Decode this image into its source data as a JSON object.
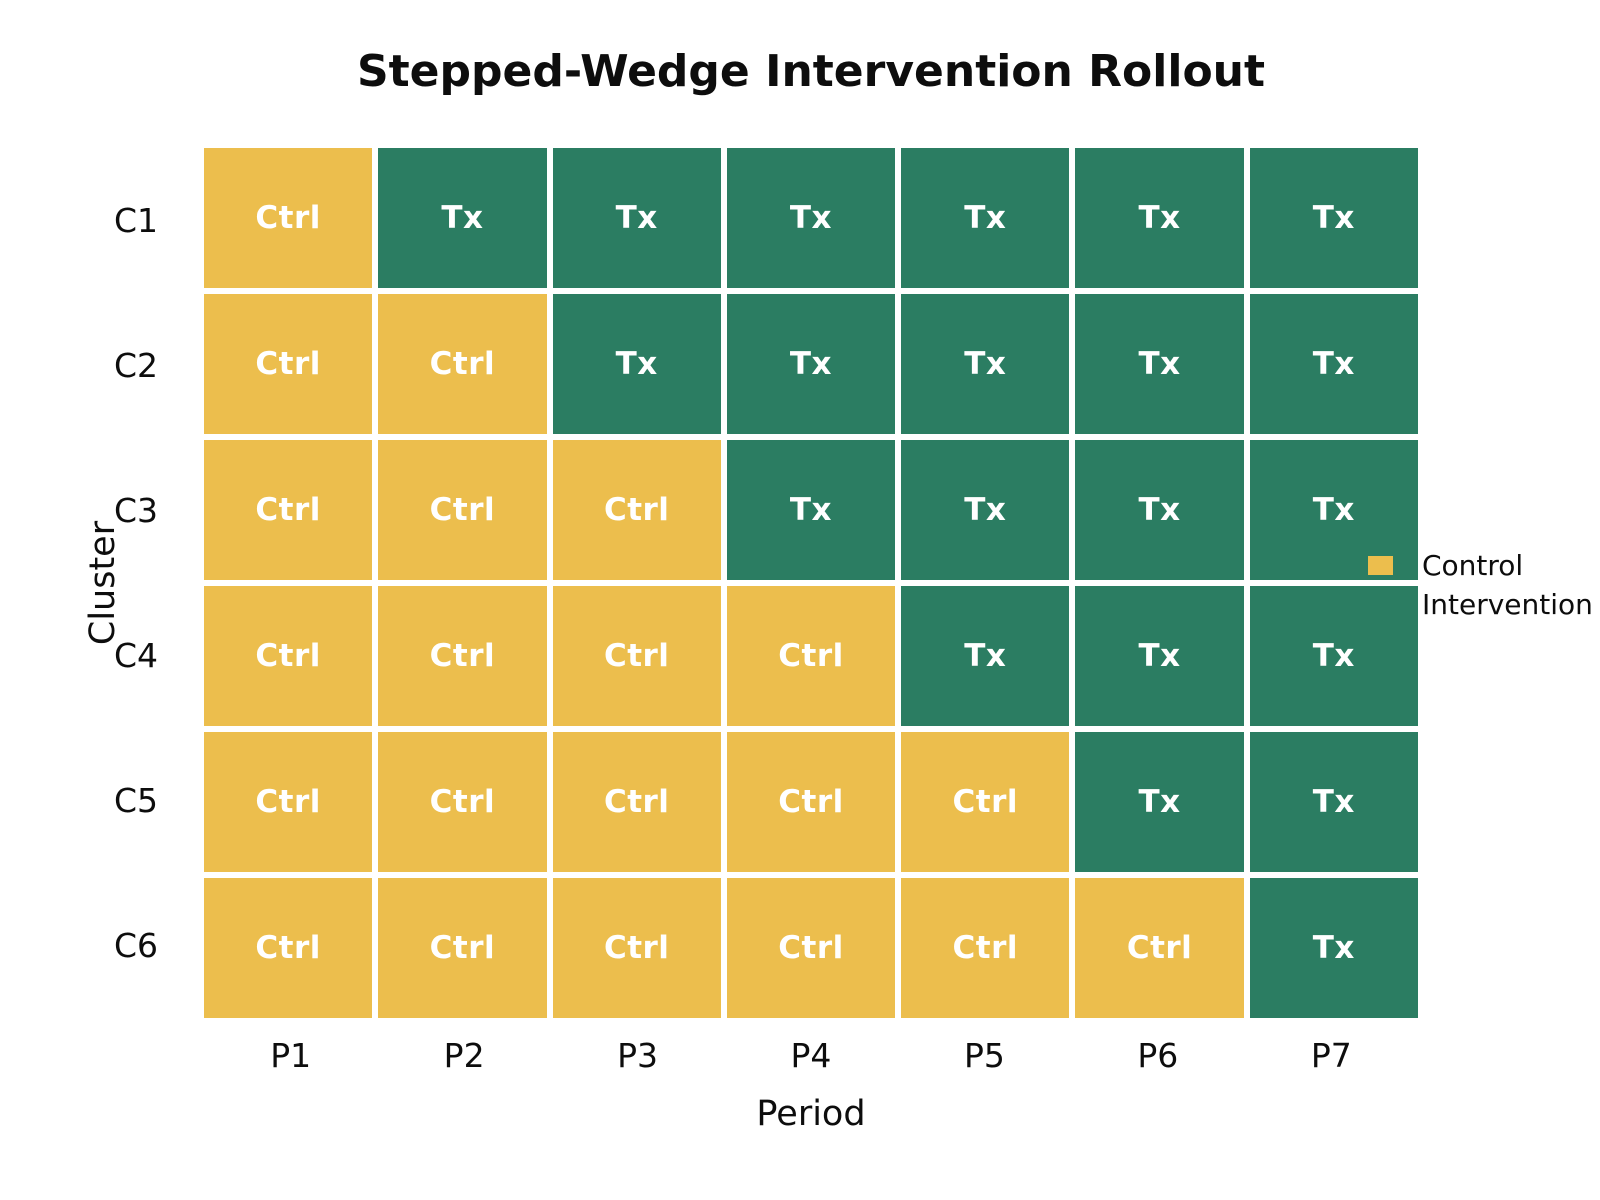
{
  "chart_data": {
    "type": "heatmap",
    "title": "Stepped-Wedge Intervention Rollout",
    "xlabel": "Period",
    "ylabel": "Cluster",
    "rows": [
      "C1",
      "C2",
      "C3",
      "C4",
      "C5",
      "C6"
    ],
    "columns": [
      "P1",
      "P2",
      "P3",
      "P4",
      "P5",
      "P6",
      "P7"
    ],
    "cell_labels": {
      "control": "Ctrl",
      "intervention": "Tx"
    },
    "matrix": [
      [
        "Ctrl",
        "Tx",
        "Tx",
        "Tx",
        "Tx",
        "Tx",
        "Tx"
      ],
      [
        "Ctrl",
        "Ctrl",
        "Tx",
        "Tx",
        "Tx",
        "Tx",
        "Tx"
      ],
      [
        "Ctrl",
        "Ctrl",
        "Ctrl",
        "Tx",
        "Tx",
        "Tx",
        "Tx"
      ],
      [
        "Ctrl",
        "Ctrl",
        "Ctrl",
        "Ctrl",
        "Tx",
        "Tx",
        "Tx"
      ],
      [
        "Ctrl",
        "Ctrl",
        "Ctrl",
        "Ctrl",
        "Ctrl",
        "Tx",
        "Tx"
      ],
      [
        "Ctrl",
        "Ctrl",
        "Ctrl",
        "Ctrl",
        "Ctrl",
        "Ctrl",
        "Tx"
      ]
    ],
    "crossover_period": {
      "C1": "P2",
      "C2": "P3",
      "C3": "P4",
      "C4": "P5",
      "C5": "P6",
      "C6": "P7"
    },
    "colors": {
      "control": "#ECBE4D",
      "intervention": "#2B7D62"
    },
    "legend_position": "right-middle",
    "grid": "white gaps between cells",
    "legend": [
      {
        "label": "Control",
        "value": "Ctrl",
        "color": "#ECBE4D"
      },
      {
        "label": "Intervention",
        "value": "Tx",
        "color": "#2B7D62"
      }
    ]
  }
}
